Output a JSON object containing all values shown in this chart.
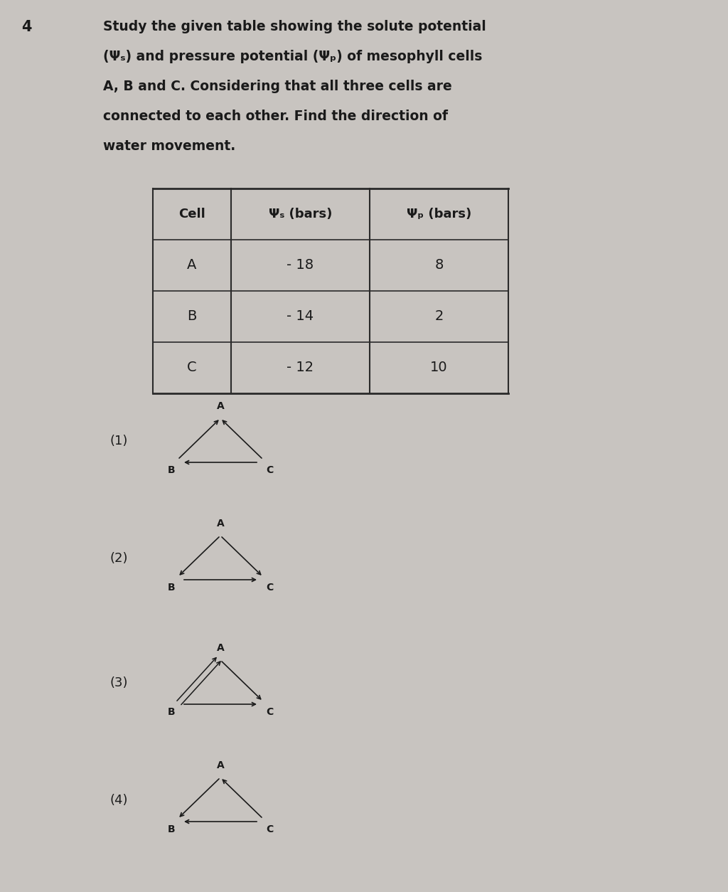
{
  "bg_color": "#c8c4c0",
  "question_number": "4",
  "question_text_line1": "Study the given table showing the solute potential",
  "question_text_line2": "(Ψₛ) and pressure potential (Ψₚ) of mesophyll cells",
  "question_text_line3": "A, B and C. Considering that all three cells are",
  "question_text_line4": "connected to each other. Find the direction of",
  "question_text_line5": "water movement.",
  "table_headers": [
    "Cell",
    "Ψₛ (bars)",
    "Ψₚ (bars)"
  ],
  "table_data": [
    [
      "A",
      "- 18",
      "8"
    ],
    [
      "B",
      "- 14",
      "2"
    ],
    [
      "C",
      "- 12",
      "10"
    ]
  ],
  "options": [
    {
      "label": "(1)",
      "arrow_AB": "B_to_A",
      "arrow_AC": "C_to_A",
      "arrow_BC": "C_to_B",
      "double_AB": false
    },
    {
      "label": "(2)",
      "arrow_AB": "A_to_B",
      "arrow_AC": "A_to_C",
      "arrow_BC": "B_to_C",
      "double_AB": false
    },
    {
      "label": "(3)",
      "arrow_AB": "B_to_A",
      "arrow_AC": "A_to_C",
      "arrow_BC": "B_to_C",
      "double_AB": true
    },
    {
      "label": "(4)",
      "arrow_AB": "A_to_B",
      "arrow_AC": "C_to_A",
      "arrow_BC": "C_to_B",
      "double_AB": false
    }
  ]
}
